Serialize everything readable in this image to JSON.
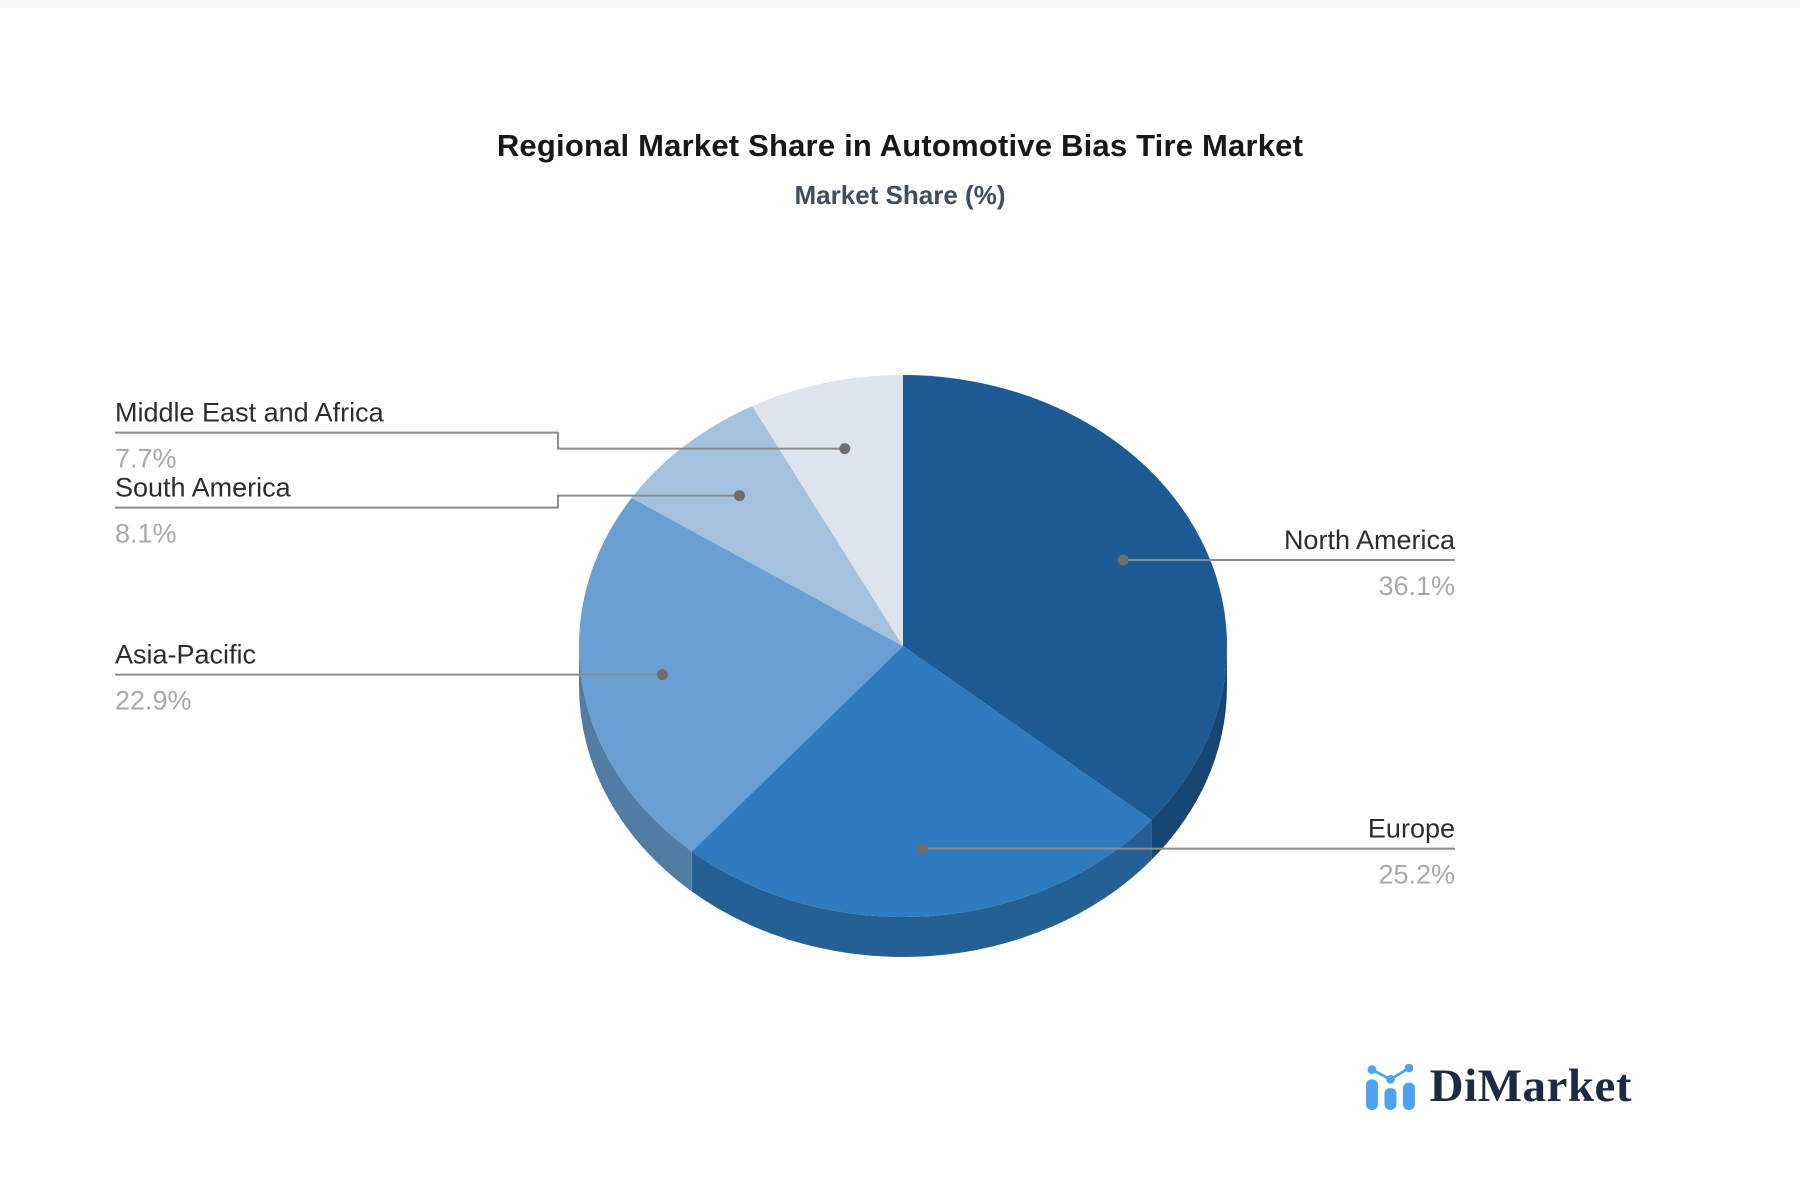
{
  "chart_data": {
    "type": "pie",
    "title": "Regional Market Share in Automotive Bias Tire Market",
    "subtitle": "Market Share (%)",
    "unit": "%",
    "style": "3d-pie, leader-line callout labels, no legend, white background",
    "slices": [
      {
        "label": "North America",
        "value": 36.1,
        "value_label": "36.1%",
        "color": "#1d5a94"
      },
      {
        "label": "Europe",
        "value": 25.2,
        "value_label": "25.2%",
        "color": "#2e7bbd"
      },
      {
        "label": "Asia-Pacific",
        "value": 22.9,
        "value_label": "22.9%",
        "color": "#699fd2"
      },
      {
        "label": "South America",
        "value": 8.1,
        "value_label": "8.1%",
        "color": "#a4c2de"
      },
      {
        "label": "Middle East and Africa",
        "value": 7.7,
        "value_label": "7.7%",
        "color": "#dee4ed"
      }
    ],
    "start_angle": "12 o'clock, clockwise",
    "label_color": "#2d2d2d",
    "value_color": "#a9a9a9",
    "leader_line_color": "#8c8c8c",
    "leader_dot_color": "#6e6e6e",
    "title_color": "#181818",
    "subtitle_color": "#3f4c63"
  },
  "logo": {
    "text": "DiMarket",
    "icon": "bar-chart-with-trend-dots-icon",
    "icon_color": "#4da2f2",
    "text_color": "#1c2b45"
  }
}
